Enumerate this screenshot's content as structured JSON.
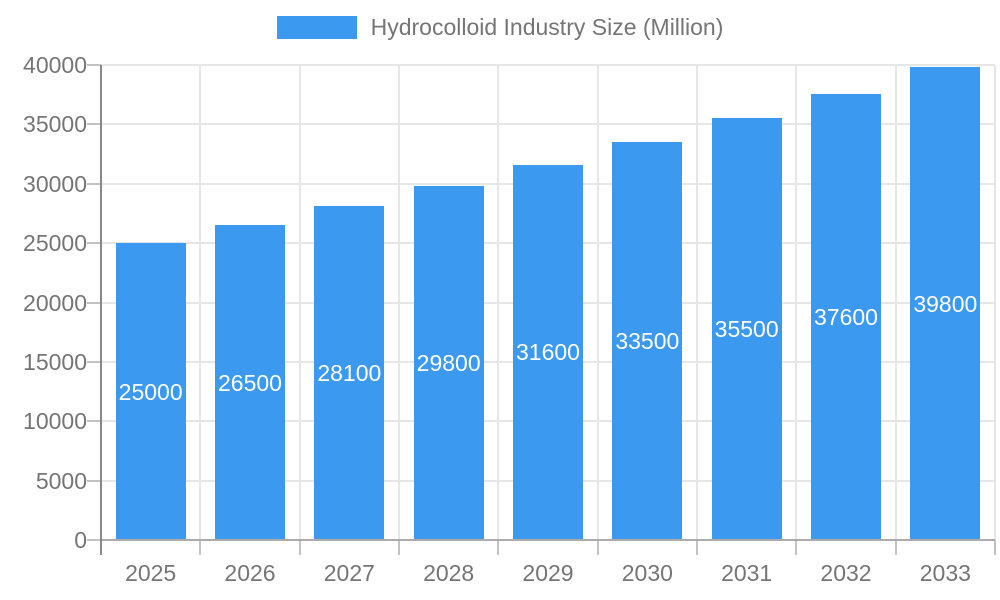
{
  "legend": {
    "label": "Hydrocolloid Industry Size (Million)"
  },
  "chart_data": {
    "type": "bar",
    "title": "Hydrocolloid Industry Size (Million)",
    "categories": [
      "2025",
      "2026",
      "2027",
      "2028",
      "2029",
      "2030",
      "2031",
      "2032",
      "2033"
    ],
    "values": [
      25000,
      26500,
      28100,
      29800,
      31600,
      33500,
      35500,
      37600,
      39800
    ],
    "series_name": "Hydrocolloid Industry Size (Million)",
    "xlabel": "",
    "ylabel": "",
    "ylim": [
      0,
      40000
    ],
    "yticks": [
      0,
      5000,
      10000,
      15000,
      20000,
      25000,
      30000,
      35000,
      40000
    ],
    "grid": true,
    "legend_position": "top",
    "data_labels": "inside-center",
    "colors": {
      "bar": "#3b99ef",
      "axis_text": "#757575",
      "grid": "#e6e6e6",
      "y_axis_line": "#888888",
      "x_axis_line": "#ababab",
      "tick": "#c2c2c2",
      "data_label": "#ffffff"
    }
  }
}
